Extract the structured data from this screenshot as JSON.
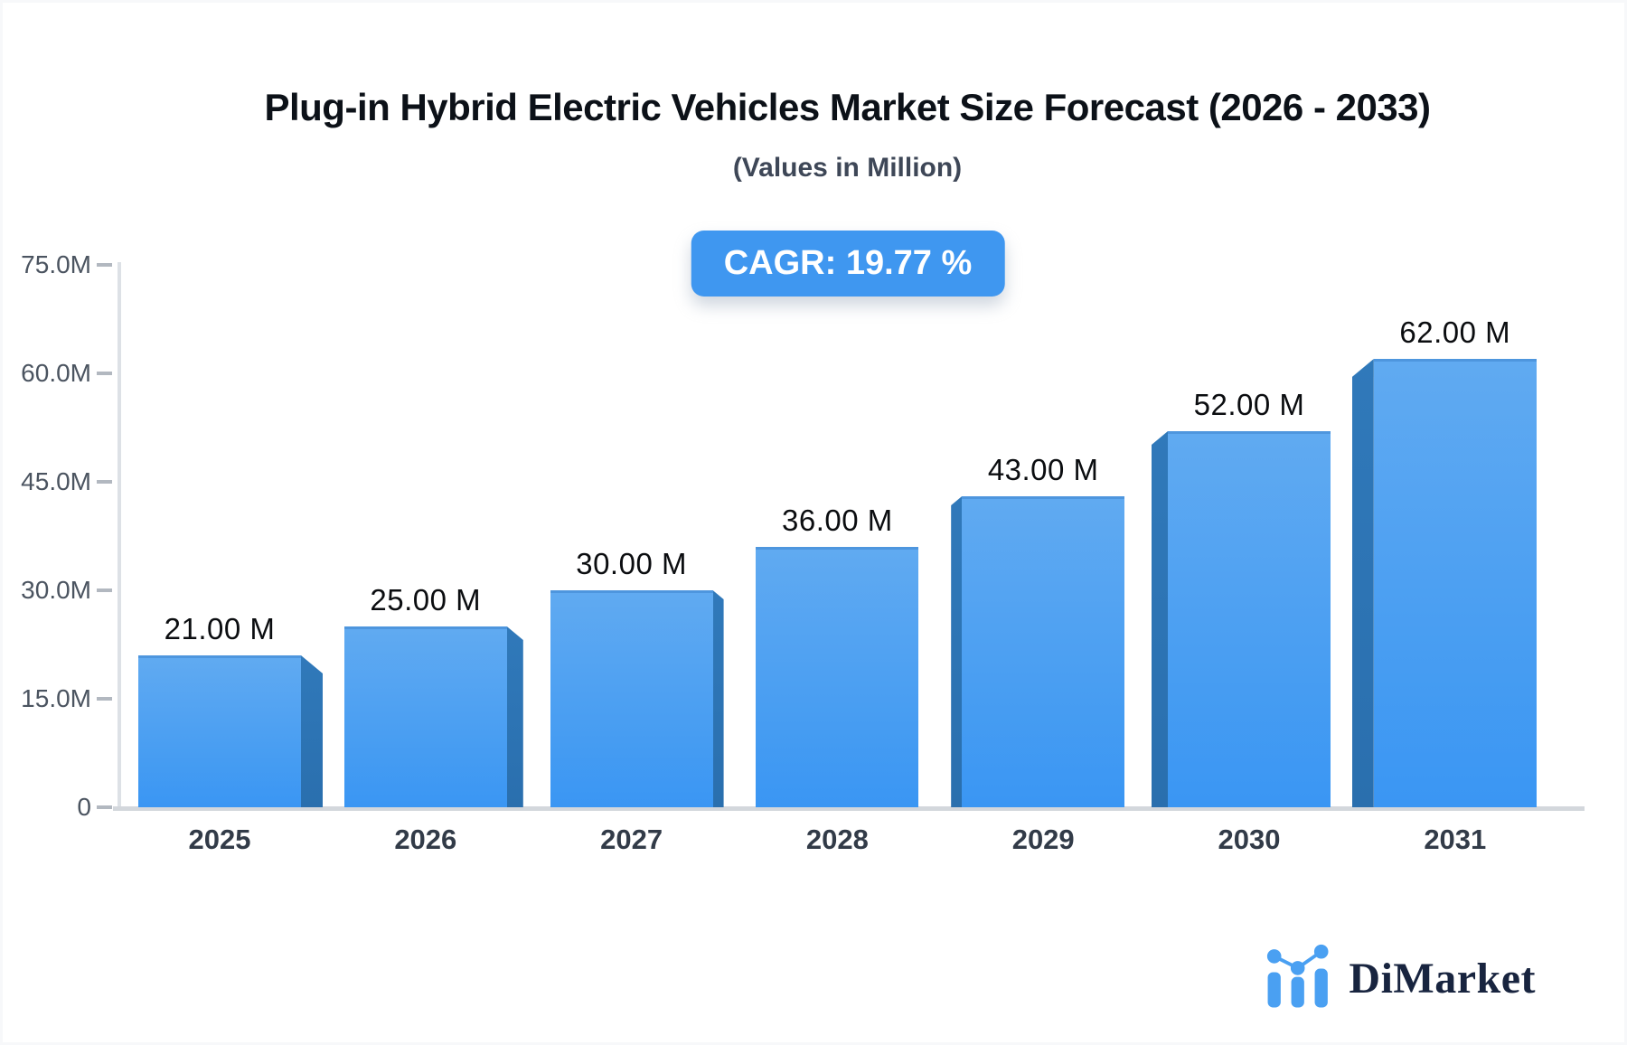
{
  "header": {
    "title": "Plug-in Hybrid Electric Vehicles Market Size Forecast (2026 - 2033)",
    "subtitle": "(Values in Million)"
  },
  "badge": {
    "label": "CAGR: 19.77 %",
    "background_color": "#3f97f0",
    "text_color": "#ffffff"
  },
  "chart_data": {
    "type": "bar",
    "title": "Plug-in Hybrid Electric Vehicles Market Size Forecast (2026 - 2033)",
    "subtitle": "(Values in Million)",
    "categories": [
      "2025",
      "2026",
      "2027",
      "2028",
      "2029",
      "2030",
      "2031"
    ],
    "values": [
      21,
      25,
      30,
      36,
      43,
      52,
      62
    ],
    "value_labels": [
      "21.00 M",
      "25.00 M",
      "30.00 M",
      "36.00 M",
      "43.00 M",
      "52.00 M",
      "62.00 M"
    ],
    "unit": "Million",
    "ylim": [
      0,
      75
    ],
    "yticks": [
      {
        "value": 0,
        "label": "0"
      },
      {
        "value": 15,
        "label": "15.0M"
      },
      {
        "value": 30,
        "label": "30.0M"
      },
      {
        "value": 45,
        "label": "45.0M"
      },
      {
        "value": 60,
        "label": "60.0M"
      },
      {
        "value": 75,
        "label": "75.0M"
      }
    ],
    "grid": false,
    "legend": false,
    "bar_face_color_top": "#60aaf1",
    "bar_face_color_bottom": "#3a96f3",
    "bar_side_color": "#2e74b3",
    "style_note": "3D extruded bars; side shading faces away from chart center"
  },
  "logo": {
    "text": "DiMarket",
    "icon": "bar-chart-logo-icon",
    "icon_color": "#4aa0f2",
    "text_color": "#18243f"
  }
}
